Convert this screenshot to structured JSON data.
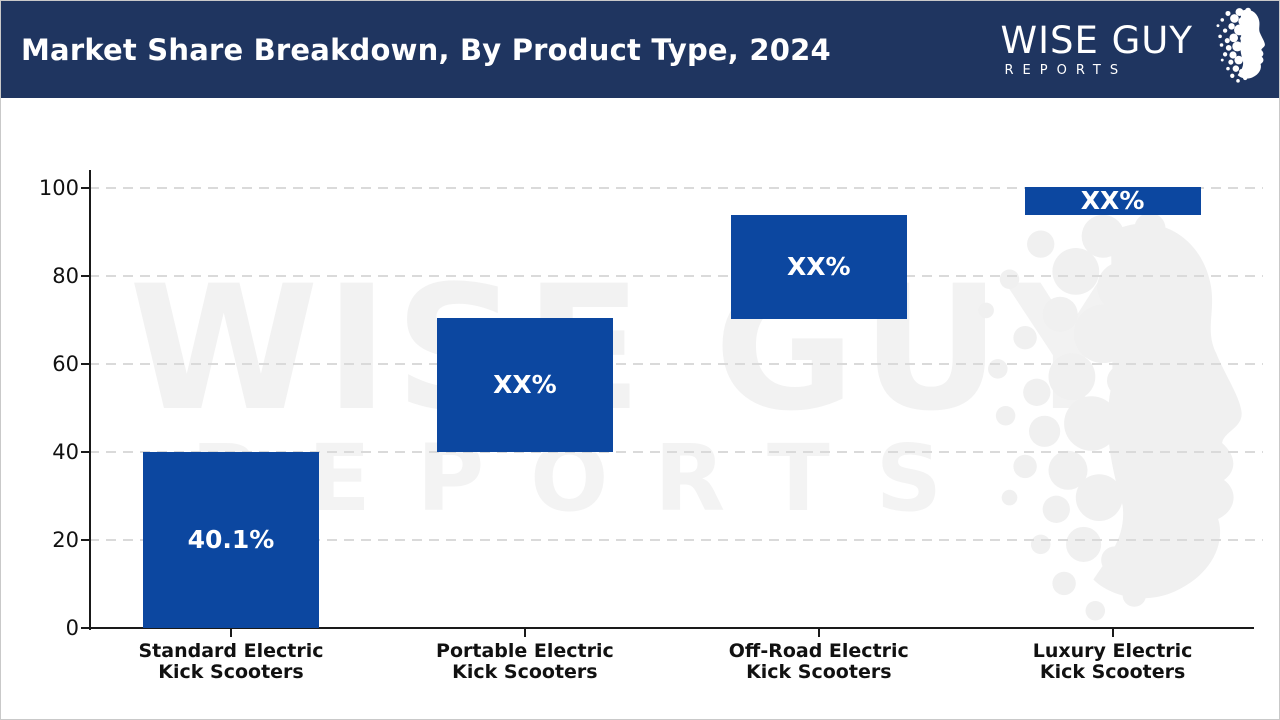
{
  "header": {
    "title": "Market Share Breakdown, By Product Type, 2024",
    "logo": {
      "line1": "WISE GUY",
      "line2": "REPORTS"
    }
  },
  "watermark": {
    "line1": "WISE GUY",
    "line2": "REPORTS"
  },
  "chart_data": {
    "type": "bar",
    "subtype": "floating-segment (waterfall style)",
    "title": "Market Share Breakdown, By Product Type, 2024",
    "categories": [
      [
        "Standard Electric",
        "Kick Scooters"
      ],
      [
        "Portable Electric",
        "Kick Scooters"
      ],
      [
        "Off-Road Electric",
        "Kick Scooters"
      ],
      [
        "Luxury Electric",
        "Kick Scooters"
      ]
    ],
    "segments": [
      {
        "start": 0,
        "end": 40.1,
        "label": "40.1%"
      },
      {
        "start": 40.1,
        "end": 70.4,
        "label": "XX%"
      },
      {
        "start": 70.3,
        "end": 93.9,
        "label": "XX%"
      },
      {
        "start": 93.9,
        "end": 100.2,
        "label": "XX%"
      }
    ],
    "yticks": [
      0,
      20,
      40,
      60,
      80,
      100
    ],
    "ylim": [
      0,
      104
    ],
    "xlabel": "",
    "ylabel": "",
    "grid": "horizontal dashed",
    "legend": "none",
    "bar_color": "#0c47a0",
    "bar_label_color": "#ffffff"
  },
  "colors": {
    "header_bg": "#1f3560",
    "bar": "#0c47a0",
    "grid": "#dadada",
    "axis": "#1a1a1a",
    "watermark": "#f2f2f2",
    "page_border": "#c9c9c9"
  }
}
